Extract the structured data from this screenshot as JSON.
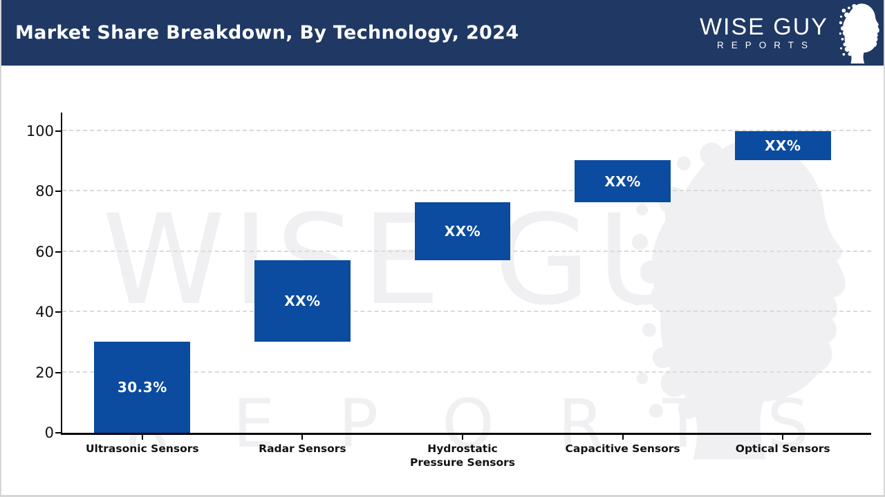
{
  "header": {
    "title": "Market Share Breakdown, By Technology, 2024",
    "logo": {
      "wise_guy": "WISE GUY",
      "reports": "REPORTS"
    }
  },
  "watermark": {
    "wise_guy": "WISE GUY",
    "reports": "REPORTS"
  },
  "chart_data": {
    "type": "bar",
    "style": "waterfall",
    "title": "Market Share Breakdown, By Technology, 2024",
    "categories": [
      "Ultrasonic Sensors",
      "Radar Sensors",
      "Hydrostatic\nPressure Sensors",
      "Capacitive Sensors",
      "Optical Sensors"
    ],
    "segments": [
      {
        "category": "Ultrasonic Sensors",
        "start": 0,
        "end": 30.3,
        "value_label": "30.3%"
      },
      {
        "category": "Radar Sensors",
        "start": 30.3,
        "end": 57.2,
        "value_label": "XX%"
      },
      {
        "category": "Hydrostatic Pressure Sensors",
        "start": 57.2,
        "end": 76.4,
        "value_label": "XX%"
      },
      {
        "category": "Capacitive Sensors",
        "start": 76.4,
        "end": 90.4,
        "value_label": "XX%"
      },
      {
        "category": "Optical Sensors",
        "start": 90.4,
        "end": 100,
        "value_label": "XX%"
      }
    ],
    "ylim": [
      0,
      100
    ],
    "yticks": [
      0,
      20,
      40,
      60,
      80,
      100
    ],
    "grid": "horizontal-dashed",
    "legend": "none",
    "xlabel": "",
    "ylabel": ""
  },
  "colors": {
    "header_bg": "#1f3864",
    "title_text": "#ffffff",
    "bar": "#0b4ba0",
    "bar_label": "#ffffff",
    "axis": "#000000",
    "tick_label": "#111111",
    "gridline": "#d9d9d9",
    "watermark": "#f0f0f3",
    "page_bg": "#ffffff",
    "page_border": "#d6d6d6"
  }
}
